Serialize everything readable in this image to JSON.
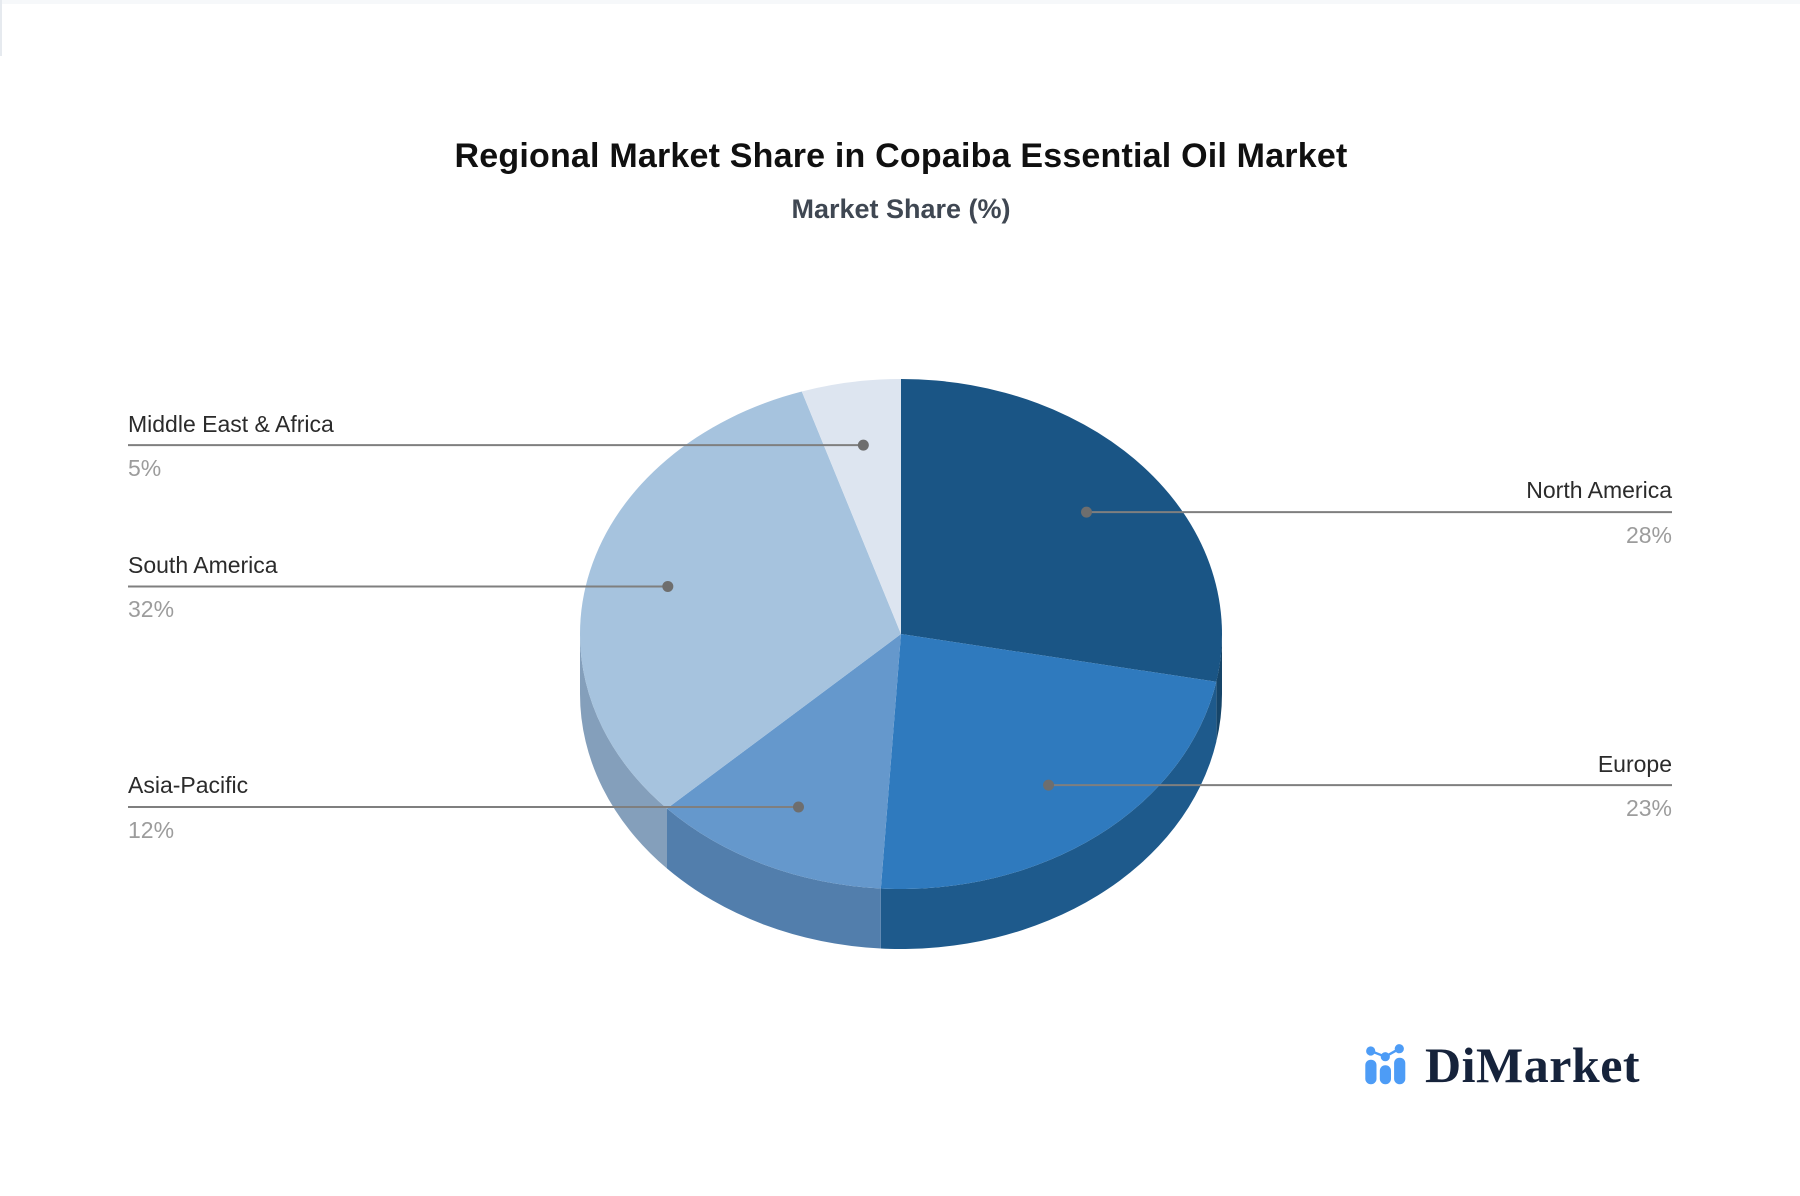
{
  "page": {
    "background": "#FFFFFF"
  },
  "chart_data": {
    "type": "pie",
    "subtype": "pie-3d",
    "title": "Regional Market Share in Copaiba Essential Oil Market",
    "subtitle": "Market Share (%)",
    "unit": "%",
    "title_color": "#101010",
    "subtitle_color": "#3F4752",
    "legend_position": "none",
    "labels": "leader-lines",
    "segments": [
      {
        "label": "North America",
        "value": 28,
        "pct_label": "28%",
        "color": "#1A5585",
        "side_color": "#164569"
      },
      {
        "label": "Europe",
        "value": 23,
        "pct_label": "23%",
        "color": "#2F7ABE",
        "side_color": "#1E5A8C"
      },
      {
        "label": "Asia-Pacific",
        "value": 12,
        "pct_label": "12%",
        "color": "#6598CC",
        "side_color": "#527EAC"
      },
      {
        "label": "South America",
        "value": 32,
        "pct_label": "32%",
        "color": "#A6C3DE",
        "side_color": "#849FBB"
      },
      {
        "label": "Middle East & Africa",
        "value": 5,
        "pct_label": "5%",
        "color": "#DDE5F0",
        "side_color": "#B8C4D4"
      }
    ],
    "label_style": {
      "line_color": "#7F7F7F",
      "dot_color": "#6E6E6E",
      "name_color": "#2B2B2B",
      "pct_color": "#9C9C9C"
    }
  },
  "footer": {
    "brand": "DiMarket",
    "logo_color": "#4D9CF6",
    "text_color": "#16233B"
  }
}
